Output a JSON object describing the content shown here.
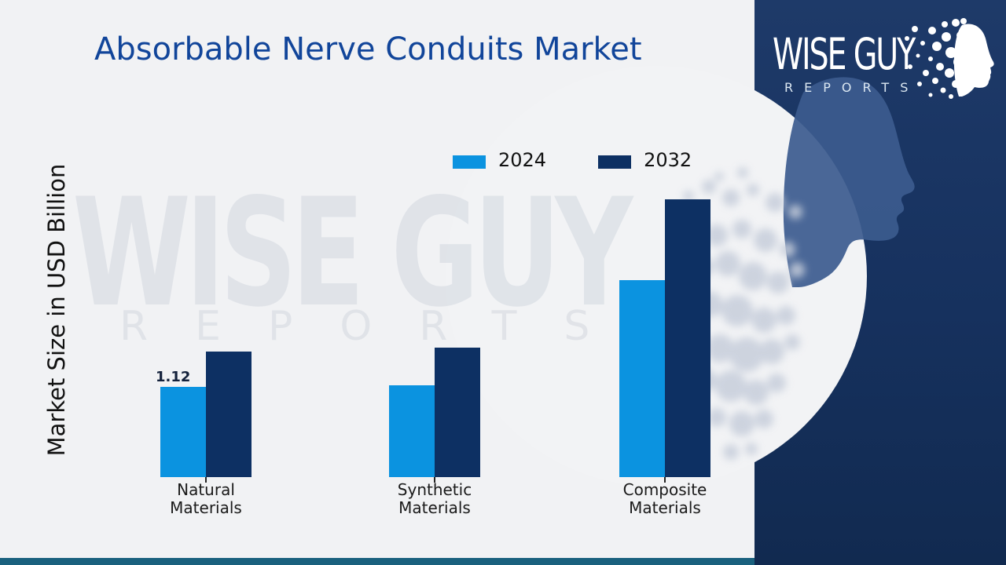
{
  "page": {
    "background_color": "#f1f2f4",
    "footer_bar_color": "#1a617e",
    "side_panel_color": "#16315e",
    "title_color": "#11459a"
  },
  "branding": {
    "logo": {
      "line1": "WISE GUY",
      "line2": "REPORTS"
    },
    "watermark": {
      "line1": "WISE GUY",
      "line2": "REPORTS"
    }
  },
  "chart_data": {
    "type": "bar",
    "title": "Absorbable Nerve Conduits Market",
    "ylabel": "Market Size in USD Billion",
    "xlabel": "",
    "categories": [
      "Natural Materials",
      "Synthetic Materials",
      "Composite Materials"
    ],
    "series": [
      {
        "name": "2024",
        "color": "#0b93e0",
        "values": [
          1.12,
          1.14,
          2.44
        ]
      },
      {
        "name": "2032",
        "color": "#0d3063",
        "values": [
          1.56,
          1.61,
          3.45
        ]
      }
    ],
    "data_labels": [
      {
        "series": "2024",
        "category_index": 0,
        "text": "1.12"
      }
    ],
    "legend_position": "top-center",
    "grid": false,
    "ylim": [
      0,
      4
    ]
  }
}
